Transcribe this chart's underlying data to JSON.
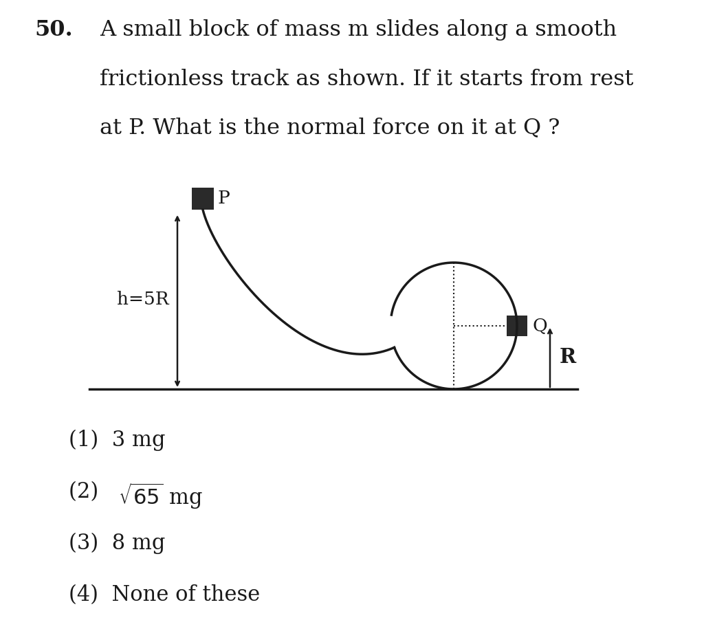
{
  "bg_color": "#ffffff",
  "text_color": "#1a1a1a",
  "question_number": "50.",
  "question_text_line1": "A small block of mass m slides along a smooth",
  "question_text_line2": "frictionless track as shown. If it starts from rest",
  "question_text_line3": "at P. What is the normal force on it at Q ?",
  "options_text": [
    "(1)  3 mg",
    "(2)",
    "(3)  8 mg",
    "(4)  None of these"
  ],
  "h_label": "h=5R",
  "P_label": "P",
  "Q_label": "Q",
  "R_label": "R",
  "block_color": "#2a2a2a",
  "line_color": "#1a1a1a",
  "font_size_question": 23,
  "font_size_options": 22,
  "font_size_labels": 19,
  "fig_width": 10.24,
  "fig_height": 9.31,
  "dpi": 100
}
